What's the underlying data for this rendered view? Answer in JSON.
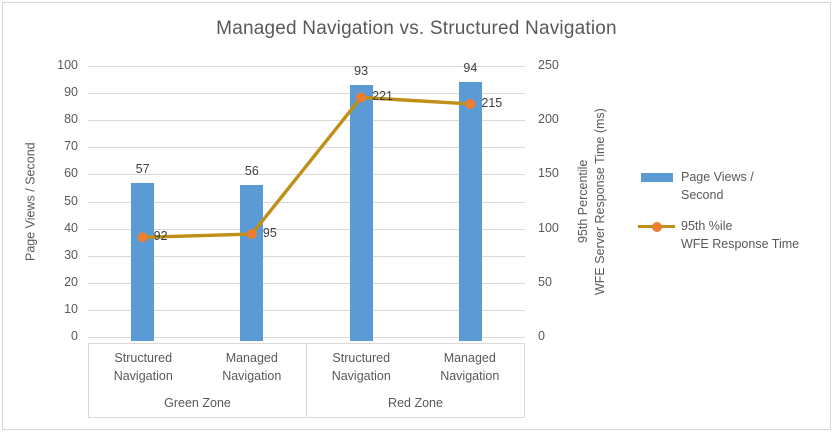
{
  "chart_data": {
    "type": "combo-bar-line",
    "title": "Managed Navigation vs. Structured Navigation",
    "categories": [
      "Structured Navigation",
      "Managed Navigation",
      "Structured Navigation",
      "Managed Navigation"
    ],
    "category_groups": [
      {
        "label": "Green Zone",
        "span": 2
      },
      {
        "label": "Red Zone",
        "span": 2
      }
    ],
    "series": [
      {
        "name": "Page Views / Second",
        "type": "bar",
        "axis": "left",
        "color": "#5B9BD5",
        "values": [
          57,
          56,
          93,
          94
        ]
      },
      {
        "name": "95th %ile WFE Response Time",
        "type": "line",
        "axis": "right",
        "color": "#BF9018",
        "marker_color": "#ED7D31",
        "values": [
          92,
          95,
          221,
          215
        ]
      }
    ],
    "left_axis": {
      "label": "Page Views / Second",
      "min": 0,
      "max": 100,
      "step": 10,
      "ticks": [
        0,
        10,
        20,
        30,
        40,
        50,
        60,
        70,
        80,
        90,
        100
      ]
    },
    "right_axis": {
      "label": "95th Percentile\nWFE Server Response Time (ms)",
      "min": 0,
      "max": 250,
      "step": 50,
      "ticks": [
        0,
        50,
        100,
        150,
        200,
        250
      ]
    },
    "grid": true,
    "data_labels_shown": true,
    "legend": {
      "position": "right",
      "entries": [
        {
          "label": "Page Views /\nSecond",
          "swatch": "bar",
          "color": "#5B9BD5"
        },
        {
          "label": "95th %ile\nWFE Response Time",
          "swatch": "line",
          "color": "#BF9018",
          "marker_color": "#ED7D31"
        }
      ]
    },
    "colors": {
      "text": "#595959",
      "data_label": "#404040",
      "grid": "#D9D9D9",
      "border": "#D7D7D7"
    }
  }
}
